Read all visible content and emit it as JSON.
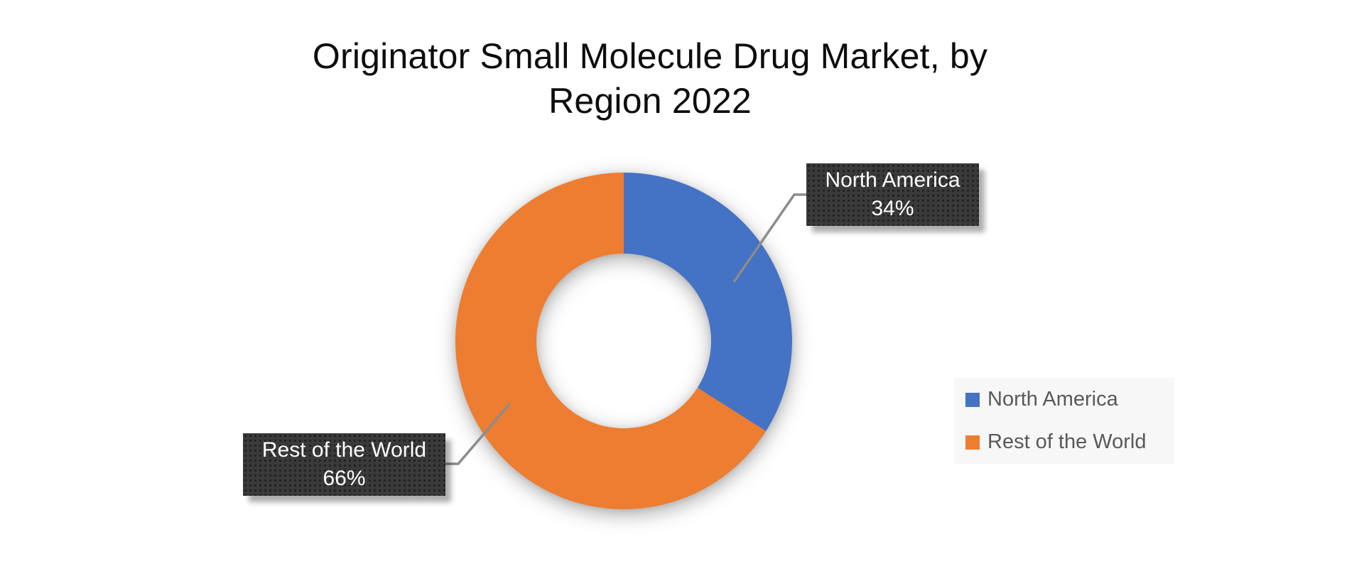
{
  "page": {
    "background": "#FFFFFF"
  },
  "title": {
    "text": "Originator Small Molecule Drug Market, by\nRegion 2022"
  },
  "chart_data": {
    "type": "pie",
    "subtype": "donut",
    "title": "Originator Small Molecule Drug Market, by Region 2022",
    "categories": [
      "North America",
      "Rest of the World"
    ],
    "values": [
      34,
      66
    ],
    "unit": "%",
    "colors": [
      "#4472C4",
      "#ED7D31"
    ],
    "start_angle_deg": 0,
    "direction": "clockwise",
    "inner_radius_ratio": 0.52,
    "legend_position": "right",
    "grid": false,
    "data_labels": [
      {
        "label": "North America",
        "value_text": "34%"
      },
      {
        "label": "Rest of the World",
        "value_text": "66%"
      }
    ],
    "label_style": {
      "background": "#3A3A3A",
      "text_color": "#FFFFFF"
    },
    "leader_line_color": "#8C8C8C",
    "legend_text_color": "#595959",
    "legend_background": "#F7F7F7"
  }
}
